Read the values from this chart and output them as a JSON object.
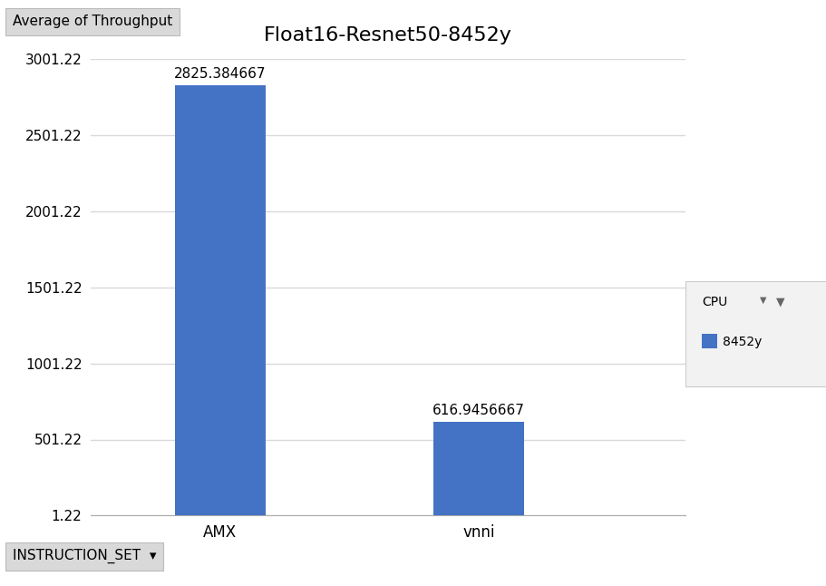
{
  "title": "Float16-Resnet50-8452y",
  "categories": [
    "AMX",
    "vnni"
  ],
  "values": [
    2825.384667,
    616.9456667
  ],
  "bar_color": "#4472C4",
  "ylabel_box_label": "Average of Throughput",
  "xlabel_box_label": "INSTRUCTION_SET",
  "legend_title": "CPU",
  "legend_label": "8452y",
  "legend_color": "#4472C4",
  "ylim_min": 1.22,
  "ylim_max": 3001.22,
  "yticks": [
    1.22,
    501.22,
    1001.22,
    1501.22,
    2001.22,
    2501.22,
    3001.22
  ],
  "background_color": "#FFFFFF",
  "plot_bg_color": "#FFFFFF",
  "title_fontsize": 16,
  "tick_fontsize": 11,
  "label_fontsize": 10,
  "bar_width": 0.35,
  "grid_color": "#D9D9D9",
  "label_box_color": "#D9D9D9"
}
